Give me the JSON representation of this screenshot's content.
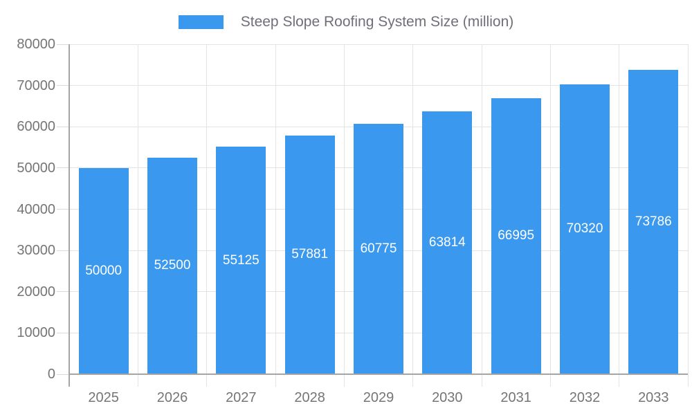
{
  "legend": {
    "label": "Steep Slope Roofing System Size (million)"
  },
  "colors": {
    "bar": "#3A99EE",
    "axis_line": "#A5A5A5",
    "grid_line": "#E3E3E3",
    "tick_dash": "#D9D9D9",
    "tick_label": "#757575",
    "legend_text": "#6E7079",
    "value_label": "#FFFFFF",
    "background": "#FFFFFF"
  },
  "chart_data": {
    "type": "bar",
    "title": "Steep Slope Roofing System Size (million)",
    "categories": [
      "2025",
      "2026",
      "2027",
      "2028",
      "2029",
      "2030",
      "2031",
      "2032",
      "2033"
    ],
    "values": [
      50000,
      52500,
      55125,
      57881,
      60775,
      63814,
      66995,
      70320,
      73786
    ],
    "series_name": "Steep Slope Roofing System Size (million)",
    "xlabel": "",
    "ylabel": "",
    "ylim": [
      0,
      80000
    ],
    "ytick_interval": 10000,
    "ytick_labels": [
      "0",
      "10000",
      "20000",
      "30000",
      "40000",
      "50000",
      "60000",
      "70000",
      "80000"
    ],
    "grid": true,
    "legend_position": "top-center",
    "value_label_position": "inside-center"
  }
}
